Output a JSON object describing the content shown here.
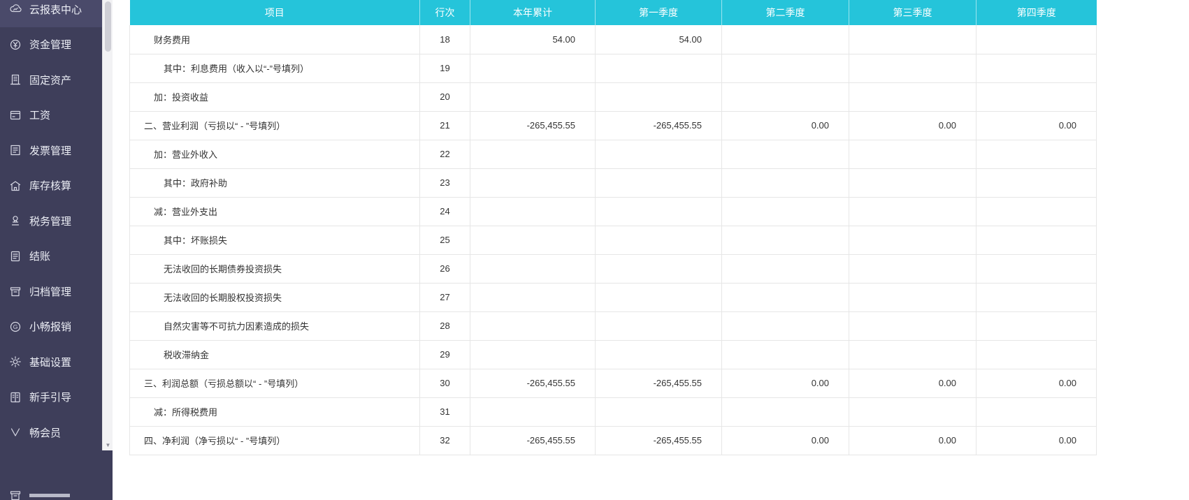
{
  "colors": {
    "accent": "#25c4da",
    "sidebar_bg": "#3e3e5a",
    "negative": "#e60000"
  },
  "sidebar": {
    "items": [
      {
        "icon": "cloud-report",
        "label": "云报表中心"
      },
      {
        "icon": "funds",
        "label": "资金管理"
      },
      {
        "icon": "fixed-assets",
        "label": "固定资产"
      },
      {
        "icon": "salary",
        "label": "工资"
      },
      {
        "icon": "invoice",
        "label": "发票管理"
      },
      {
        "icon": "inventory",
        "label": "库存核算"
      },
      {
        "icon": "tax",
        "label": "税务管理"
      },
      {
        "icon": "closing",
        "label": "结账"
      },
      {
        "icon": "archive",
        "label": "归档管理"
      },
      {
        "icon": "reimburse",
        "label": "小畅报销"
      },
      {
        "icon": "settings",
        "label": "基础设置"
      },
      {
        "icon": "guide",
        "label": "新手引导"
      },
      {
        "icon": "member",
        "label": "畅会员"
      }
    ],
    "scroll_down_glyph": "▼"
  },
  "table": {
    "headers": [
      "项目",
      "行次",
      "本年累计",
      "第一季度",
      "第二季度",
      "第三季度",
      "第四季度"
    ],
    "rows": [
      {
        "indent": 1,
        "item": "财务费用",
        "line": "18",
        "ytd": "54.00",
        "q1": "54.00",
        "q2": "",
        "q3": "",
        "q4": ""
      },
      {
        "indent": 2,
        "item": "其中：利息费用（收入以“-”号填列）",
        "line": "19",
        "ytd": "",
        "q1": "",
        "q2": "",
        "q3": "",
        "q4": ""
      },
      {
        "indent": 1,
        "item": "加：投资收益",
        "line": "20",
        "ytd": "",
        "q1": "",
        "q2": "",
        "q3": "",
        "q4": ""
      },
      {
        "indent": 0,
        "item": "二、营业利润（亏损以“ - ”号填列）",
        "line": "21",
        "ytd": "-265,455.55",
        "q1": "-265,455.55",
        "q2": "0.00",
        "q3": "0.00",
        "q4": "0.00"
      },
      {
        "indent": 1,
        "item": "加：营业外收入",
        "line": "22",
        "ytd": "",
        "q1": "",
        "q2": "",
        "q3": "",
        "q4": ""
      },
      {
        "indent": 2,
        "item": "其中：政府补助",
        "line": "23",
        "ytd": "",
        "q1": "",
        "q2": "",
        "q3": "",
        "q4": ""
      },
      {
        "indent": 1,
        "item": "减：营业外支出",
        "line": "24",
        "ytd": "",
        "q1": "",
        "q2": "",
        "q3": "",
        "q4": ""
      },
      {
        "indent": 2,
        "item": "其中：坏账损失",
        "line": "25",
        "ytd": "",
        "q1": "",
        "q2": "",
        "q3": "",
        "q4": ""
      },
      {
        "indent": 2,
        "item": "无法收回的长期债券投资损失",
        "line": "26",
        "ytd": "",
        "q1": "",
        "q2": "",
        "q3": "",
        "q4": ""
      },
      {
        "indent": 2,
        "item": "无法收回的长期股权投资损失",
        "line": "27",
        "ytd": "",
        "q1": "",
        "q2": "",
        "q3": "",
        "q4": ""
      },
      {
        "indent": 2,
        "item": "自然灾害等不可抗力因素造成的损失",
        "line": "28",
        "ytd": "",
        "q1": "",
        "q2": "",
        "q3": "",
        "q4": ""
      },
      {
        "indent": 2,
        "item": "税收滞纳金",
        "line": "29",
        "ytd": "",
        "q1": "",
        "q2": "",
        "q3": "",
        "q4": ""
      },
      {
        "indent": 0,
        "item": "三、利润总额（亏损总额以“ - ”号填列）",
        "line": "30",
        "ytd": "-265,455.55",
        "q1": "-265,455.55",
        "q2": "0.00",
        "q3": "0.00",
        "q4": "0.00"
      },
      {
        "indent": 1,
        "item": "减：所得税费用",
        "line": "31",
        "ytd": "",
        "q1": "",
        "q2": "",
        "q3": "",
        "q4": ""
      },
      {
        "indent": 0,
        "item": "四、净利润（净亏损以“ - ”号填列）",
        "line": "32",
        "ytd": "-265,455.55",
        "q1": "-265,455.55",
        "q2": "0.00",
        "q3": "0.00",
        "q4": "0.00"
      }
    ]
  }
}
